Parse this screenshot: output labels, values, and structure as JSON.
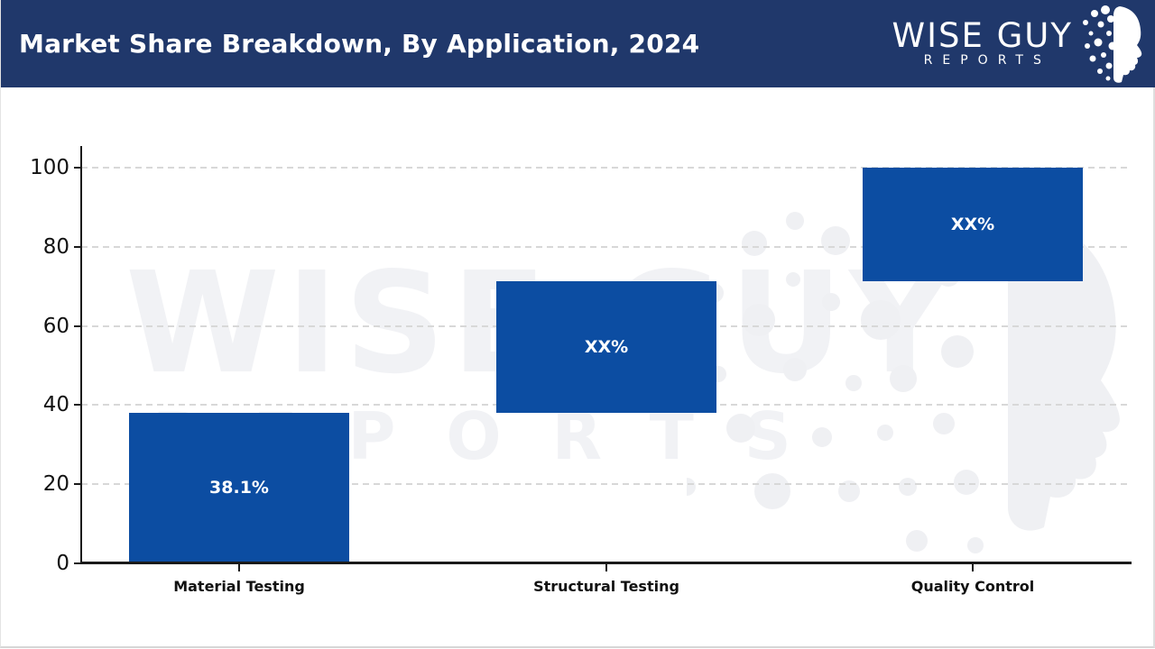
{
  "header": {
    "title": "Market Share Breakdown, By Application, 2024",
    "bg_color": "#20386b",
    "logo": {
      "line1": "WISE GUY",
      "line2": "REPORTS"
    }
  },
  "watermark": {
    "line1": "WISE GUY",
    "line2": "REPORTS"
  },
  "chart_data": {
    "type": "bar",
    "subtype": "waterfall-stacked-segments",
    "title": "Market Share Breakdown, By Application, 2024",
    "categories": [
      "Material Testing",
      "Structural Testing",
      "Quality Control"
    ],
    "segments": [
      {
        "category": "Material Testing",
        "start": 0,
        "end": 38.1,
        "label": "38.1%"
      },
      {
        "category": "Structural Testing",
        "start": 38.1,
        "end": 71.3,
        "label": "XX%"
      },
      {
        "category": "Quality Control",
        "start": 71.3,
        "end": 100,
        "label": "XX%"
      }
    ],
    "ylim": [
      0,
      100
    ],
    "yticks": [
      0,
      20,
      40,
      60,
      80,
      100
    ],
    "xlabel": "",
    "ylabel": "",
    "grid": "horizontal-dashed",
    "legend": "none",
    "bar_color": "#0c4da2",
    "bar_label_color": "#ffffff",
    "grid_color": "#d8d8d8",
    "axis_color": "#1a1a1a"
  }
}
